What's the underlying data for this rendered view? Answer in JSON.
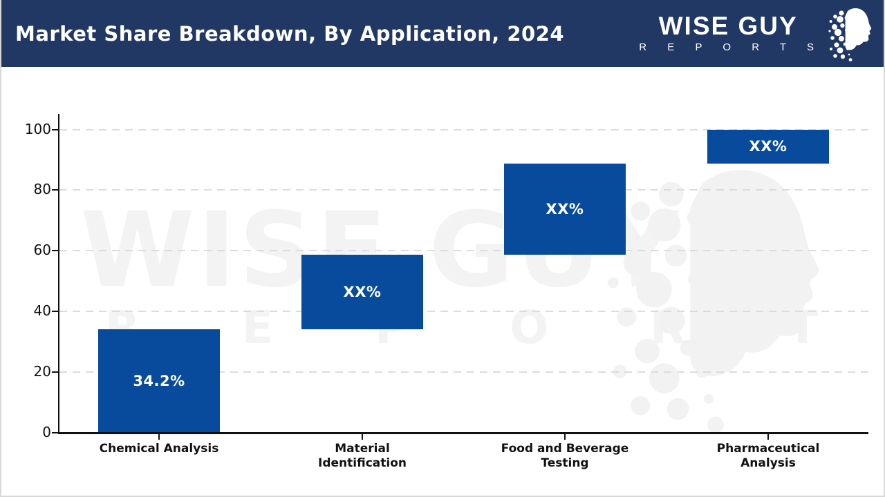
{
  "header": {
    "title": "Market Share Breakdown, By Application, 2024",
    "logo": {
      "line1": "WISE GUY",
      "line2": "R E P O R T S"
    }
  },
  "watermark": {
    "line1": "WISE GUY",
    "line2": "R E P O R T S"
  },
  "chart_data": {
    "type": "bar",
    "subtype": "waterfall",
    "title": "Market Share Breakdown, By Application, 2024",
    "xlabel": "",
    "ylabel": "",
    "categories": [
      "Chemical Analysis",
      "Material Identification",
      "Food and Beverage Testing",
      "Pharmaceutical Analysis"
    ],
    "segments": [
      {
        "category": "Chemical Analysis",
        "category_lines": [
          "Chemical Analysis"
        ],
        "start": 0,
        "end": 34.2,
        "label": "34.2%"
      },
      {
        "category": "Material Identification",
        "category_lines": [
          "Material",
          "Identification"
        ],
        "start": 34.2,
        "end": 58.6,
        "label": "XX%"
      },
      {
        "category": "Food and Beverage Testing",
        "category_lines": [
          "Food and Beverage",
          "Testing"
        ],
        "start": 58.6,
        "end": 88.7,
        "label": "XX%"
      },
      {
        "category": "Pharmaceutical Analysis",
        "category_lines": [
          "Pharmaceutical",
          "Analysis"
        ],
        "start": 88.7,
        "end": 100,
        "label": "XX%"
      }
    ],
    "yticks": [
      0,
      20,
      40,
      60,
      80,
      100
    ],
    "ylim": [
      0,
      105
    ],
    "grid": "dashed horizontal",
    "legend": "none",
    "bar_color": "#084a9c",
    "bar_label_color": "#ffffff"
  },
  "colors": {
    "header_bg": "#213764",
    "bar": "#084a9c",
    "grid": "#dcdcdc",
    "axis": "#111111",
    "watermark": "#f2f2f2",
    "page_border": "#d8d8d8"
  }
}
